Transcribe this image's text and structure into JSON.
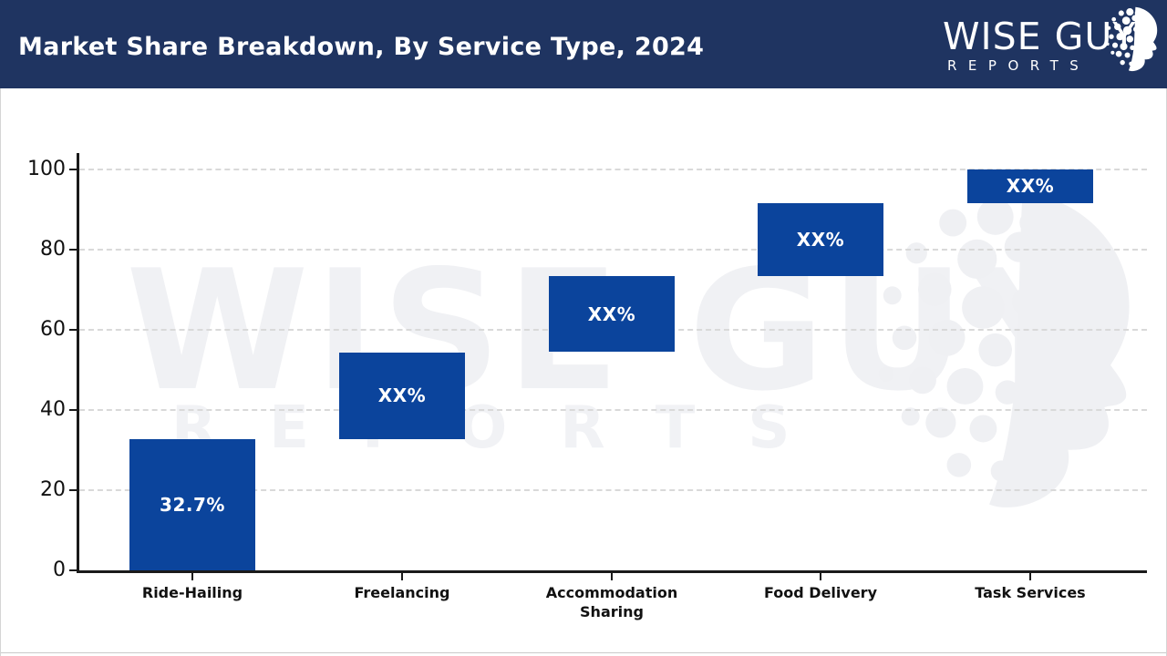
{
  "header": {
    "title": "Market Share Breakdown, By Service Type, 2024",
    "logo": {
      "line1": "WISE GUY",
      "line2": "REPORTS"
    }
  },
  "watermark": {
    "line1": "WISE GUY",
    "line2": "REPORTS"
  },
  "chart_data": {
    "type": "bar",
    "subtype": "waterfall",
    "title": "Market Share Breakdown, By Service Type, 2024",
    "categories": [
      "Ride-Hailing",
      "Freelancing",
      "Accommodation Sharing",
      "Food Delivery",
      "Task Services"
    ],
    "segments": [
      {
        "category": "Ride-Hailing",
        "start": 0,
        "end": 32.7,
        "label": "32.7%"
      },
      {
        "category": "Freelancing",
        "start": 32.7,
        "end": 54.4,
        "label": "XX%"
      },
      {
        "category": "Accommodation Sharing",
        "start": 54.5,
        "end": 73.4,
        "label": "XX%"
      },
      {
        "category": "Food Delivery",
        "start": 73.5,
        "end": 91.6,
        "label": "XX%"
      },
      {
        "category": "Task Services",
        "start": 91.6,
        "end": 100,
        "label": "XX%"
      }
    ],
    "xlabel": "",
    "ylabel": "",
    "ylim": [
      0,
      100
    ],
    "yticks": [
      0,
      20,
      40,
      60,
      80,
      100
    ],
    "grid": "horizontal-dashed",
    "legend": "none",
    "bar_color": "#0b449c",
    "bar_label_color": "#ffffff"
  },
  "colors": {
    "header_bg": "#1f3461",
    "bar": "#0b449c",
    "gridline": "#d9d9d9",
    "axis": "#1a1a1a",
    "watermark": "#f0f1f4"
  }
}
